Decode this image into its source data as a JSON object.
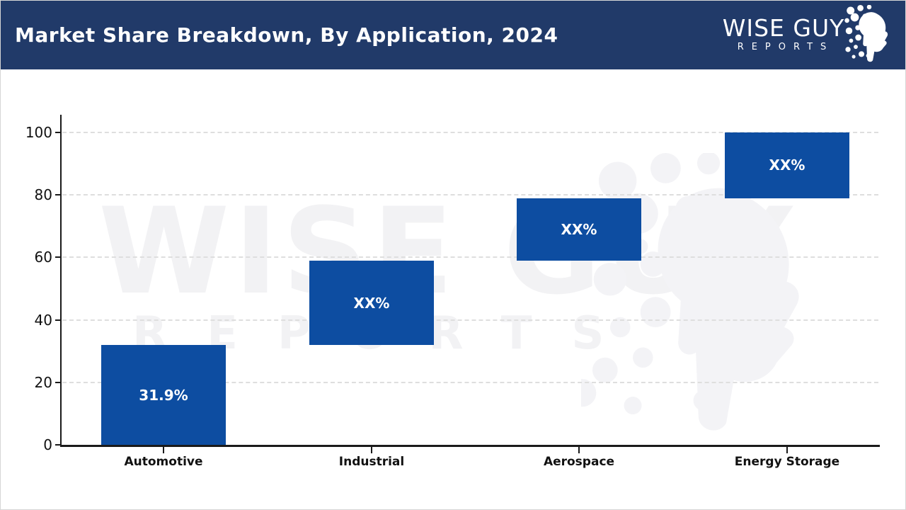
{
  "header": {
    "title": "Market Share Breakdown, By Application, 2024",
    "logo": {
      "line1": "WISE GUY",
      "line2": "REPORTS"
    }
  },
  "watermark": {
    "line1": "WISE GUY",
    "line2": "REPORTS"
  },
  "chart_data": {
    "type": "bar",
    "subtype": "waterfall",
    "title": "Market Share Breakdown, By Application, 2024",
    "categories": [
      "Automotive",
      "Industrial",
      "Aerospace",
      "Energy Storage"
    ],
    "segments": [
      {
        "category": "Automotive",
        "start": 0,
        "end": 31.9,
        "label": "31.9%"
      },
      {
        "category": "Industrial",
        "start": 31.9,
        "end": 59.0,
        "label": "XX%"
      },
      {
        "category": "Aerospace",
        "start": 59.0,
        "end": 79.0,
        "label": "XX%"
      },
      {
        "category": "Energy Storage",
        "start": 79.0,
        "end": 100.0,
        "label": "XX%"
      }
    ],
    "yticks": [
      0,
      20,
      40,
      60,
      80,
      100
    ],
    "ylim": [
      0,
      105
    ],
    "xlabel": "",
    "ylabel": "",
    "grid": "horizontal-dashed",
    "legend": "none",
    "bar_color": "#0d4da1",
    "bar_label_color": "#ffffff"
  },
  "colors": {
    "header_bg": "#213a69",
    "axis": "#1a1a1a",
    "gridline": "#dedede",
    "watermark": "#f2f2f4"
  }
}
